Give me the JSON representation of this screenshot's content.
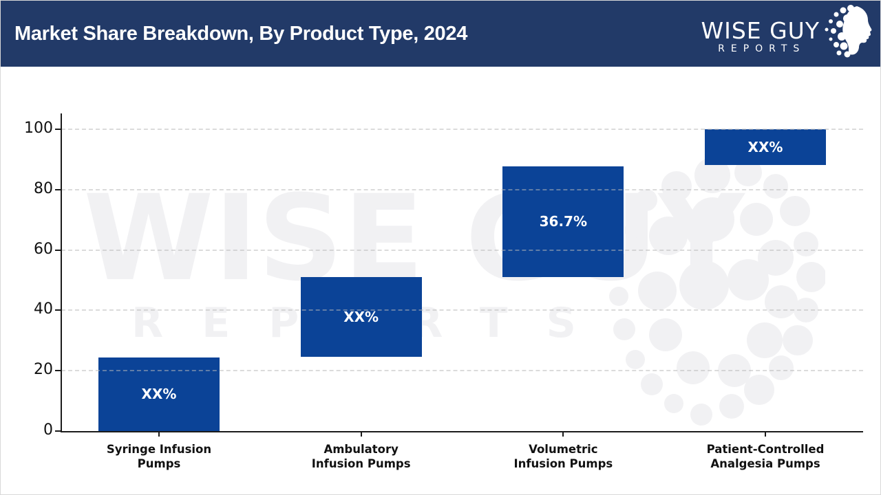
{
  "header": {
    "title": "Market Share Breakdown, By Product Type, 2024",
    "logo": {
      "name": "WISE GUY",
      "subtext": "REPORTS"
    }
  },
  "watermark": {
    "line1": "WISE GUY",
    "line2": "REPORTS"
  },
  "colors": {
    "header_bg": "#223A68",
    "bar": "#0B4397",
    "axis": "#1a1a1a",
    "grid": "#b9b9b9",
    "watermark": "#f1f1f3",
    "bar_label": "#ffffff"
  },
  "chart_data": {
    "type": "bar",
    "subtype": "floating-segment-waterfall",
    "title": "Market Share Breakdown, By Product Type, 2024",
    "categories": [
      "Syringe Infusion Pumps",
      "Ambulatory Infusion Pumps",
      "Volumetric Infusion Pumps",
      "Patient-Controlled Analgesia Pumps"
    ],
    "bars": [
      {
        "category": "Syringe Infusion Pumps",
        "display": "Syringe Infusion\nPumps",
        "start": 0,
        "end": 24.4,
        "label": "XX%"
      },
      {
        "category": "Ambulatory Infusion Pumps",
        "display": "Ambulatory\nInfusion Pumps",
        "start": 24.5,
        "end": 51.1,
        "label": "XX%"
      },
      {
        "category": "Volumetric Infusion Pumps",
        "display": "Volumetric\nInfusion Pumps",
        "start": 51.1,
        "end": 87.8,
        "label": "36.7%"
      },
      {
        "category": "Patient-Controlled Analgesia Pumps",
        "display": "Patient-Controlled\nAnalgesia Pumps",
        "start": 88.1,
        "end": 100,
        "label": "XX%"
      }
    ],
    "ylabel": "",
    "xlabel": "",
    "ylim": [
      0,
      100
    ],
    "yticks": [
      0,
      20,
      40,
      60,
      80,
      100
    ],
    "grid": "horizontal-dashed",
    "legend": "none"
  }
}
